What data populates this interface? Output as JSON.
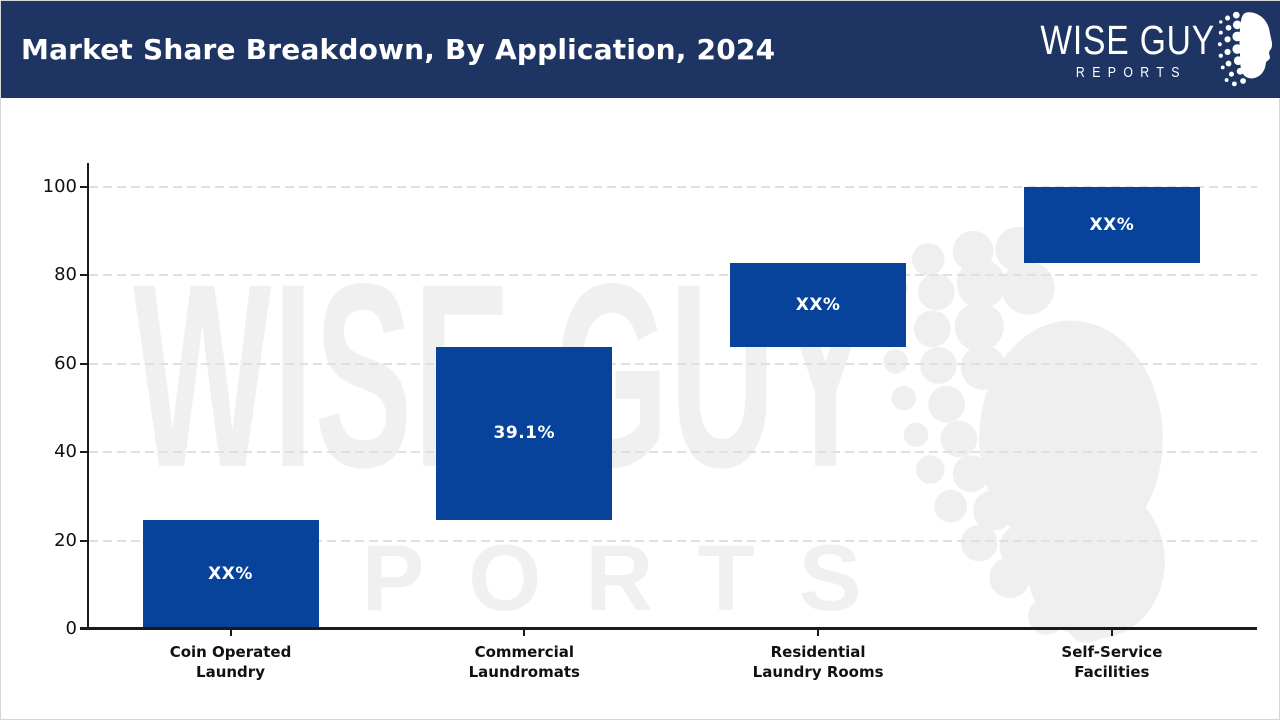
{
  "header": {
    "title": "Market Share Breakdown, By Application, 2024",
    "logo": {
      "brand": "WISE GUY",
      "sub": "REPORTS"
    }
  },
  "watermark": {
    "brand": "WISE GUY",
    "sub": "REPORTS"
  },
  "chart_data": {
    "type": "bar",
    "subtype": "floating-segment-waterfall",
    "title": "Market Share Breakdown, By Application, 2024",
    "categories": [
      [
        "Coin Operated",
        "Laundry"
      ],
      [
        "Commercial",
        "Laundromats"
      ],
      [
        "Residential",
        "Laundry Rooms"
      ],
      [
        "Self-Service",
        "Facilities"
      ]
    ],
    "segments": [
      {
        "start": 0,
        "end": 24.7,
        "label": "XX%"
      },
      {
        "start": 24.7,
        "end": 63.8,
        "label": "39.1%"
      },
      {
        "start": 63.8,
        "end": 82.9,
        "label": "XX%"
      },
      {
        "start": 82.9,
        "end": 100,
        "label": "XX%"
      }
    ],
    "yticks": [
      0,
      20,
      40,
      60,
      80,
      100
    ],
    "ylim": [
      0,
      105
    ],
    "xlabel": "",
    "ylabel": "",
    "grid": "horizontal-dashed",
    "legend": "none"
  },
  "colors": {
    "header_bg": "#1e3563",
    "bar_blue": "#08439b",
    "grid_gray": "#e0e0e0",
    "axis_black": "#1a1a1a",
    "watermark_gray": "#f0f0f0",
    "title_white": "#ffffff"
  }
}
